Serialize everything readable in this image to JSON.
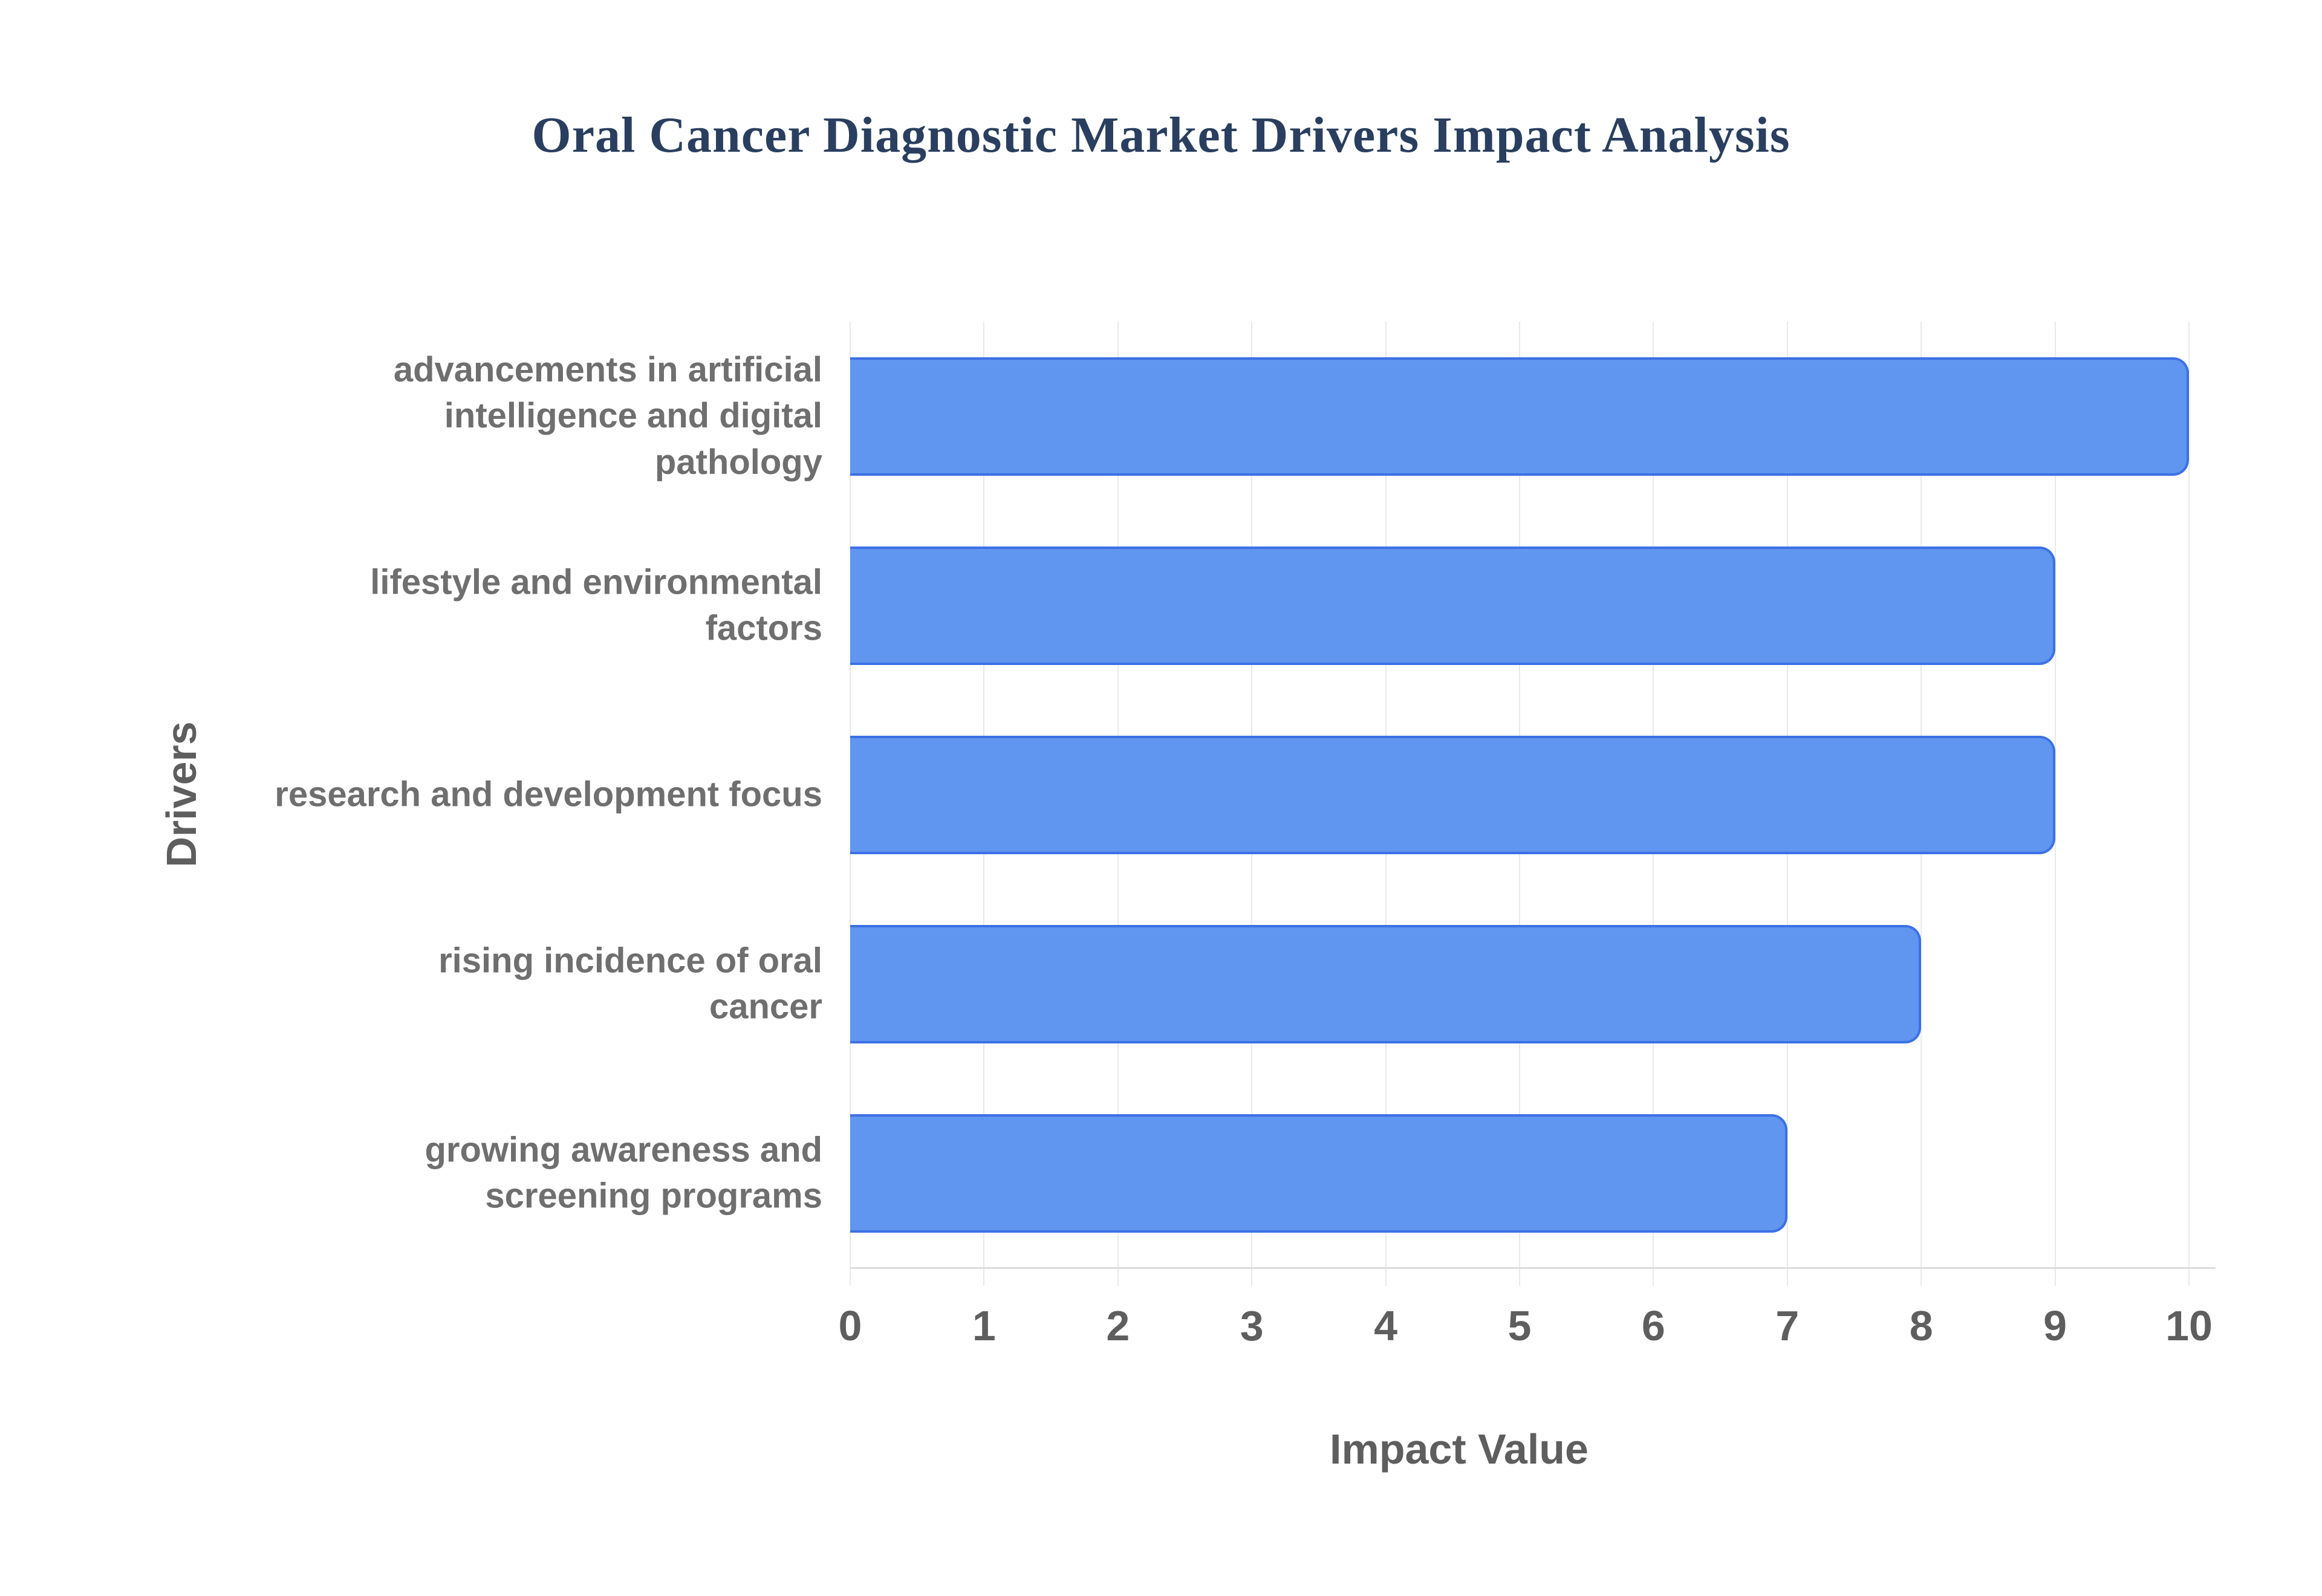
{
  "chart_data": {
    "type": "bar",
    "orientation": "horizontal",
    "title": "Oral Cancer Diagnostic Market Drivers Impact Analysis",
    "xlabel": "Impact Value",
    "ylabel": "Drivers",
    "categories": [
      "advancements in artificial intelligence and digital pathology",
      "lifestyle and environmental factors",
      "research and development focus",
      "rising incidence of oral cancer",
      "growing awareness and screening programs"
    ],
    "category_lines": [
      [
        "advancements in artificial",
        "intelligence and digital",
        "pathology"
      ],
      [
        "lifestyle and environmental",
        "factors"
      ],
      [
        "research and development focus"
      ],
      [
        "rising incidence of oral",
        "cancer"
      ],
      [
        "growing awareness and",
        "screening programs"
      ]
    ],
    "values": [
      10,
      9,
      9,
      8,
      7
    ],
    "xlim": [
      0,
      10
    ],
    "xticks": [
      "0",
      "1",
      "2",
      "3",
      "4",
      "5",
      "6",
      "7",
      "8",
      "9",
      "10"
    ],
    "grid": "vertical-only",
    "legend": "none",
    "colors": {
      "bar_fill": "#6095f0",
      "bar_stroke": "#3c71e4",
      "title_color": "#2a3f5f",
      "category_label_color": "#6f6f6f",
      "tick_label_color": "#5e5e5e",
      "axis_title_color": "#5e5e5e",
      "grid_color": "#e9e9e9",
      "axis_line_color": "#dcdcdc",
      "background": "#ffffff"
    }
  }
}
